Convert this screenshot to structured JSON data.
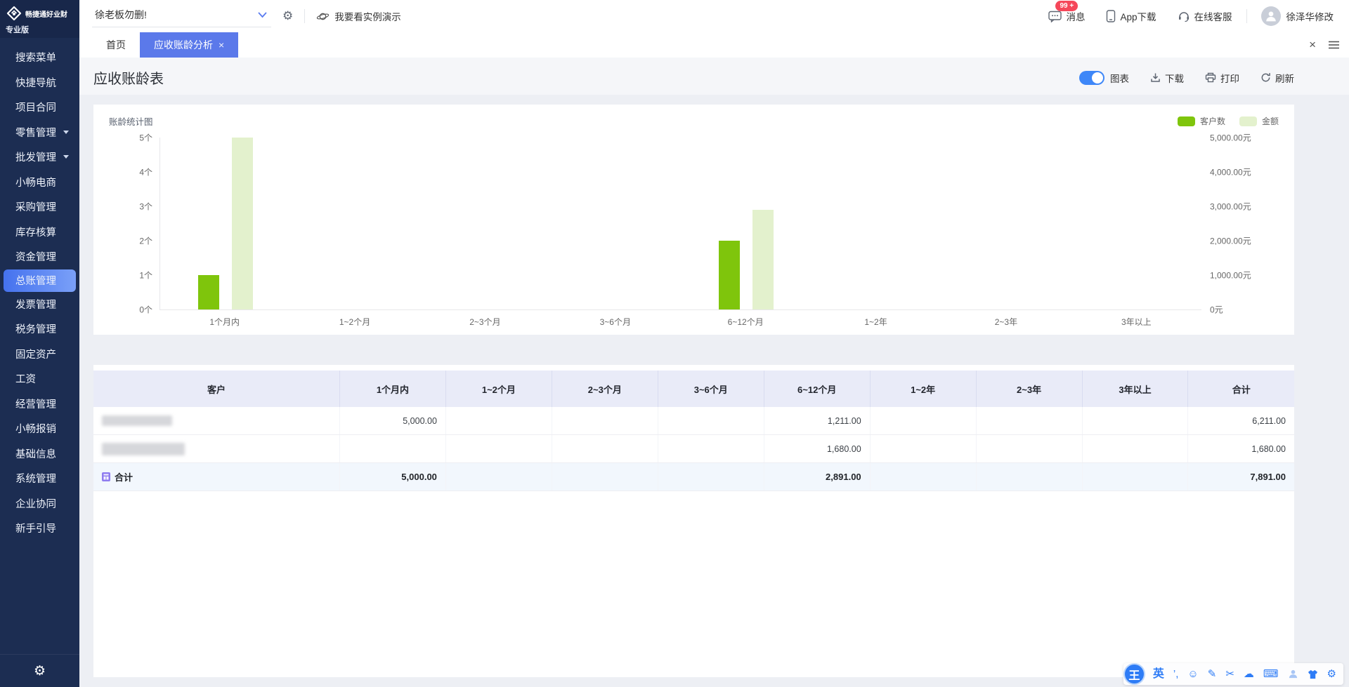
{
  "brand": {
    "name": "畅捷通好业财",
    "edition": "专业版"
  },
  "sidebar": {
    "items": [
      {
        "label": "搜索菜单"
      },
      {
        "label": "快捷导航"
      },
      {
        "label": "项目合同"
      },
      {
        "label": "零售管理",
        "expandable": true
      },
      {
        "label": "批发管理",
        "expandable": true
      },
      {
        "label": "小畅电商"
      },
      {
        "label": "采购管理"
      },
      {
        "label": "库存核算"
      },
      {
        "label": "资金管理"
      },
      {
        "label": "总账管理",
        "active": true
      },
      {
        "label": "发票管理"
      },
      {
        "label": "税务管理"
      },
      {
        "label": "固定资产"
      },
      {
        "label": "工资"
      },
      {
        "label": "经营管理"
      },
      {
        "label": "小畅报销"
      },
      {
        "label": "基础信息"
      },
      {
        "label": "系统管理"
      },
      {
        "label": "企业协同"
      },
      {
        "label": "新手引导"
      }
    ]
  },
  "topbar": {
    "company_selector": "徐老板勿删!",
    "demo_link": "我要看实例演示",
    "messages_label": "消息",
    "messages_badge": "99 +",
    "app_download_label": "App下载",
    "support_label": "在线客服",
    "username": "徐泽华修改"
  },
  "tabs": [
    {
      "label": "首页",
      "active": false,
      "closable": false
    },
    {
      "label": "应收账龄分析",
      "active": true,
      "closable": true
    }
  ],
  "page": {
    "title": "应收账龄表",
    "chart_toggle_label": "图表",
    "toggle_on": true,
    "download_label": "下载",
    "print_label": "打印",
    "refresh_label": "刷新"
  },
  "chart_data": {
    "type": "bar",
    "title": "账龄统计图",
    "categories": [
      "1个月内",
      "1~2个月",
      "2~3个月",
      "3~6个月",
      "6~12个月",
      "1~2年",
      "2~3年",
      "3年以上"
    ],
    "series": [
      {
        "name": "客户数",
        "axis": "left",
        "color": "#7fc50c",
        "values": [
          1,
          0,
          0,
          0,
          2,
          0,
          0,
          0
        ]
      },
      {
        "name": "金额",
        "axis": "right",
        "color": "#e3f1cd",
        "values": [
          5000,
          0,
          0,
          0,
          2891,
          0,
          0,
          0
        ]
      }
    ],
    "left_axis": {
      "ticks": [
        "0个",
        "1个",
        "2个",
        "3个",
        "4个",
        "5个"
      ],
      "min": 0,
      "max": 5
    },
    "right_axis": {
      "ticks": [
        "0元",
        "1,000.00元",
        "2,000.00元",
        "3,000.00元",
        "4,000.00元",
        "5,000.00元"
      ],
      "min": 0,
      "max": 5000
    },
    "legend_position": "top-right",
    "grid": false
  },
  "table": {
    "columns": [
      "客户",
      "1个月内",
      "1~2个月",
      "2~3个月",
      "3~6个月",
      "6~12个月",
      "1~2年",
      "2~3年",
      "3年以上",
      "合计"
    ],
    "rows": [
      {
        "redacted": true,
        "values": [
          "5,000.00",
          "",
          "",
          "",
          "1,211.00",
          "",
          "",
          "",
          "6,211.00"
        ]
      },
      {
        "redacted": true,
        "values": [
          "",
          "",
          "",
          "",
          "1,680.00",
          "",
          "",
          "",
          "1,680.00"
        ]
      }
    ],
    "total_row": {
      "label": "合计",
      "values": [
        "5,000.00",
        "",
        "",
        "",
        "2,891.00",
        "",
        "",
        "",
        "7,891.00"
      ]
    }
  },
  "ime_bar": {
    "logo_char": "王",
    "items": [
      {
        "name": "ime-mode-english",
        "glyph": "英",
        "mode": true
      },
      {
        "name": "ime-punctuation",
        "glyph": "’,"
      },
      {
        "name": "ime-emoji",
        "glyph": "☺"
      },
      {
        "name": "ime-handwriting",
        "glyph": "✎"
      },
      {
        "name": "ime-scissors",
        "glyph": "✂"
      },
      {
        "name": "ime-cloud",
        "glyph": "☁"
      },
      {
        "name": "ime-keyboard",
        "glyph": "⌨"
      },
      {
        "name": "ime-person",
        "glyph": "svg:person"
      },
      {
        "name": "ime-skin",
        "glyph": "svg:tshirt"
      },
      {
        "name": "ime-settings",
        "glyph": "⚙"
      }
    ]
  },
  "icons": {
    "settings_gear": "⚙"
  },
  "colors": {
    "accent_blue": "#5b79ea",
    "sidebar_bg": "#1c2d52",
    "sidebar_active_gradient": "#4572ee",
    "toggle_blue": "#3e87f8",
    "badge_red": "#f5475a",
    "series_customer_green": "#7fc50c",
    "series_amount_pale_green": "#e3f1cd",
    "table_header_bg": "#e9ebf8",
    "total_row_bg": "#f2f7fd"
  }
}
